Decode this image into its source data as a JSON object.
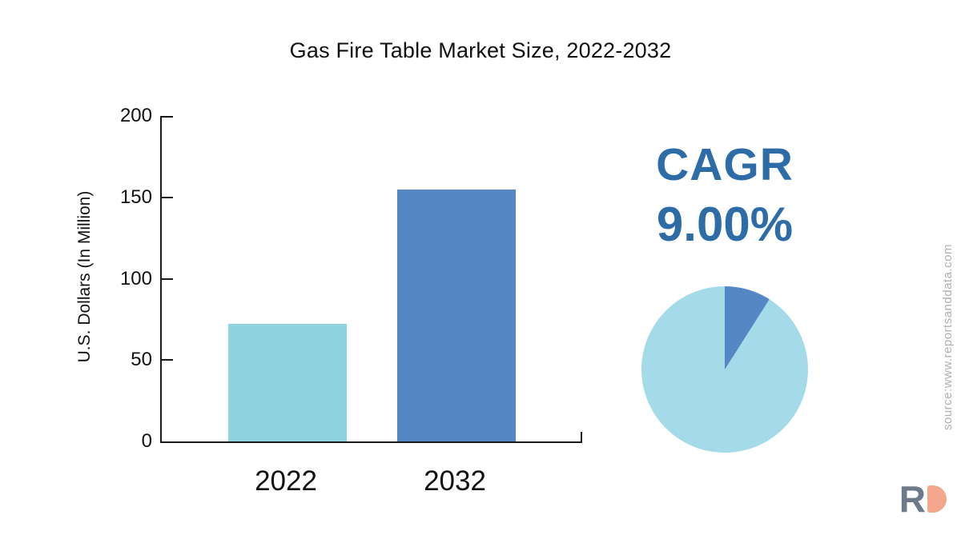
{
  "title": "Gas Fire Table Market Size, 2022-2032",
  "chart_data": {
    "type": "bar",
    "title": "Gas Fire Table Market Size, 2022-2032",
    "categories": [
      "2022",
      "2032"
    ],
    "values": [
      72,
      155
    ],
    "xlabel": "",
    "ylabel": "U.S. Dollars (In Million)",
    "ylim": [
      0,
      200
    ],
    "yticks": [
      0,
      50,
      100,
      150,
      200
    ],
    "bar_colors": [
      "#8ed3dd",
      "#5587c5"
    ],
    "grid": false,
    "legend": "none"
  },
  "cagr": {
    "label": "CAGR",
    "value": "9.00%",
    "percent": 9,
    "color": "#2e6ca8"
  },
  "pie": {
    "slice_percent": 9,
    "slice_color": "#5587c5",
    "base_color": "#a5dbe8",
    "start_angle_deg": 0
  },
  "source": {
    "text": "source:www.reportsanddata.com"
  },
  "logo": {
    "letter": "R"
  }
}
